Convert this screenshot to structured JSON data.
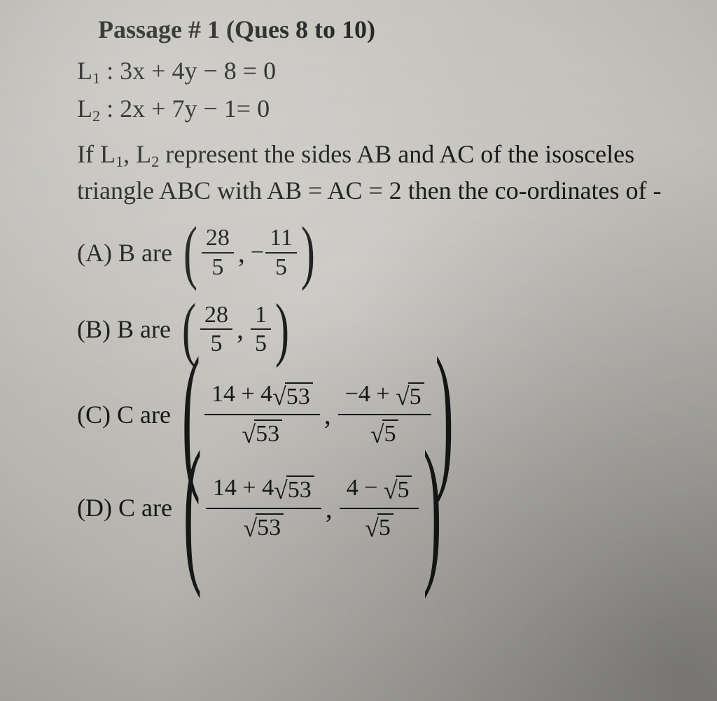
{
  "page": {
    "background_center": "#e2e0db",
    "background_edge": "#7a7871",
    "text_color": "#1a1a1a",
    "font_family": "Times New Roman",
    "base_fontsize_pt": 27
  },
  "title": "Passage # 1 (Ques 8 to 10)",
  "lines": {
    "L1_label": "L",
    "L1_sub": "1",
    "L1_expr": ": 3x + 4y − 8 = 0",
    "L2_label": "L",
    "L2_sub": "2",
    "L2_expr": ": 2x + 7y − 1= 0"
  },
  "body": {
    "p1_a": "If L",
    "p1_s1": "1",
    "p1_b": ", L",
    "p1_s2": "2",
    "p1_c": " represent the sides AB and AC of the isosceles triangle ABC with AB = AC = 2 then the co-ordinates of -"
  },
  "options": {
    "A": {
      "label": "(A) B are",
      "f1": {
        "num": "28",
        "den": "5"
      },
      "minus": "−",
      "f2": {
        "num": "11",
        "den": "5"
      }
    },
    "B": {
      "label": "(B) B are",
      "f1": {
        "num": "28",
        "den": "5"
      },
      "f2": {
        "num": "1",
        "den": "5"
      }
    },
    "C": {
      "label": "(C) C are",
      "f1": {
        "num_a": "14 + 4",
        "num_r": "53",
        "den_r": "53"
      },
      "f2": {
        "num_a": "−4 + ",
        "num_r": "5",
        "den_r": "5"
      }
    },
    "D": {
      "label": "(D) C are",
      "f1": {
        "num_a": "14 + 4",
        "num_r": "53",
        "den_r": "53"
      },
      "f2": {
        "num_a": "4 − ",
        "num_r": "5",
        "den_r": "5"
      }
    }
  },
  "glyphs": {
    "lparen": "(",
    "rparen": ")",
    "comma": ",",
    "radical": "√"
  }
}
